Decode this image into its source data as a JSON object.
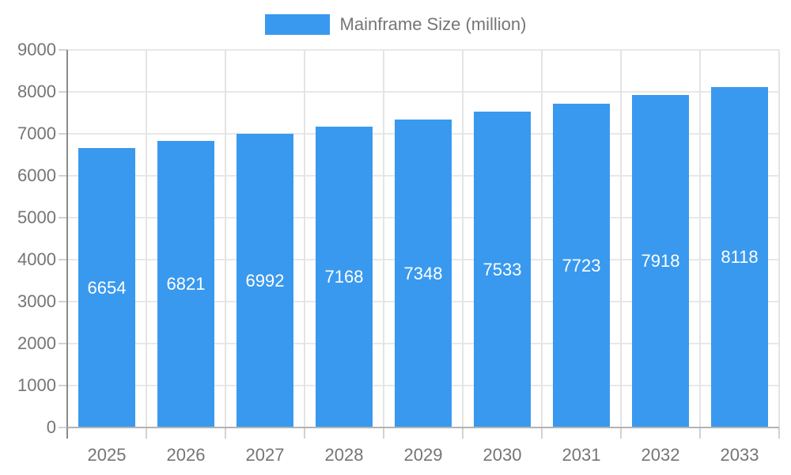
{
  "chart_data": {
    "type": "bar",
    "title": "",
    "legend_label": "Mainframe Size (million)",
    "legend_position": "top",
    "categories": [
      "2025",
      "2026",
      "2027",
      "2028",
      "2029",
      "2030",
      "2031",
      "2032",
      "2033"
    ],
    "series": [
      {
        "name": "Mainframe Size (million)",
        "values": [
          6654,
          6821,
          6992,
          7168,
          7348,
          7533,
          7723,
          7918,
          8118
        ]
      }
    ],
    "bar_value_labels": [
      "6654",
      "6821",
      "6992",
      "7168",
      "7348",
      "7533",
      "7723",
      "7918",
      "8118"
    ],
    "xlabel": "",
    "ylabel": "",
    "ylim": [
      0,
      9000
    ],
    "ytick_step": 1000,
    "ytick_labels": [
      "0",
      "1000",
      "2000",
      "3000",
      "4000",
      "5000",
      "6000",
      "7000",
      "8000",
      "9000"
    ],
    "grid": true,
    "colors": {
      "bar": "#3999EE",
      "bar_value_text": "#ffffff",
      "axis_text": "#757575",
      "legend_text": "#757575",
      "gridline": "#e8e8e8",
      "vertical_gridline": "#e4e4e4",
      "x_baseline": "#b3b3b3",
      "y_axis_line": "#8a8a8a",
      "tick": "#d2d2d2",
      "background": "#ffffff"
    }
  }
}
